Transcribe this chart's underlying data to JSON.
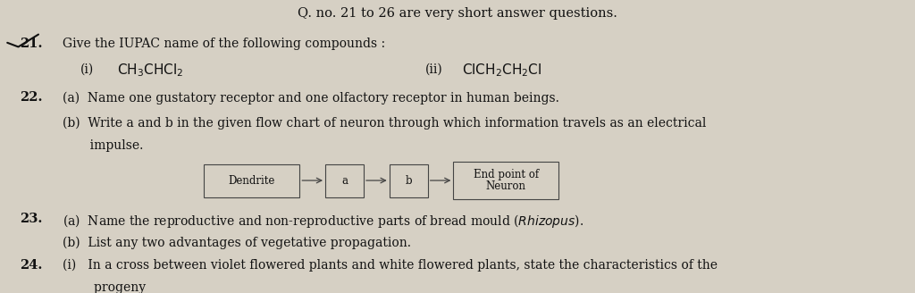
{
  "bg_color": "#d6d0c4",
  "title_line": "Q. no. 21 to 26 are very short answer questions.",
  "q21_num": "21.",
  "q21_main": "Give the IUPAC name of the following compounds :",
  "q21_i_label": "(i)",
  "q21_ii_label": "(ii)",
  "q22_num": "22.",
  "q22_a": "(a)  Name one gustatory receptor and one olfactory receptor in human beings.",
  "q22_b1": "(b)  Write a and b in the given flow chart of neuron through which information travels as an electrical",
  "q22_b2": "       impulse.",
  "flow_dendrite": "Dendrite",
  "flow_a": "a",
  "flow_b": "b",
  "flow_end1": "End point of",
  "flow_end2": "Neuron",
  "q23_num": "23.",
  "q23_a": "(a)  Name the reproductive and non-reproductive parts of bread mould (Rhizopus).",
  "q23_b": "(b)  List any two advantages of vegetative propagation.",
  "q24_num": "24.",
  "q24_i": "(i)   In a cross between violet flowered plants and white flowered plants, state the characteristics of the",
  "q24_ii": "        progeny",
  "text_color": "#111111",
  "font_size_title": 10.5,
  "font_size_body": 10.0
}
